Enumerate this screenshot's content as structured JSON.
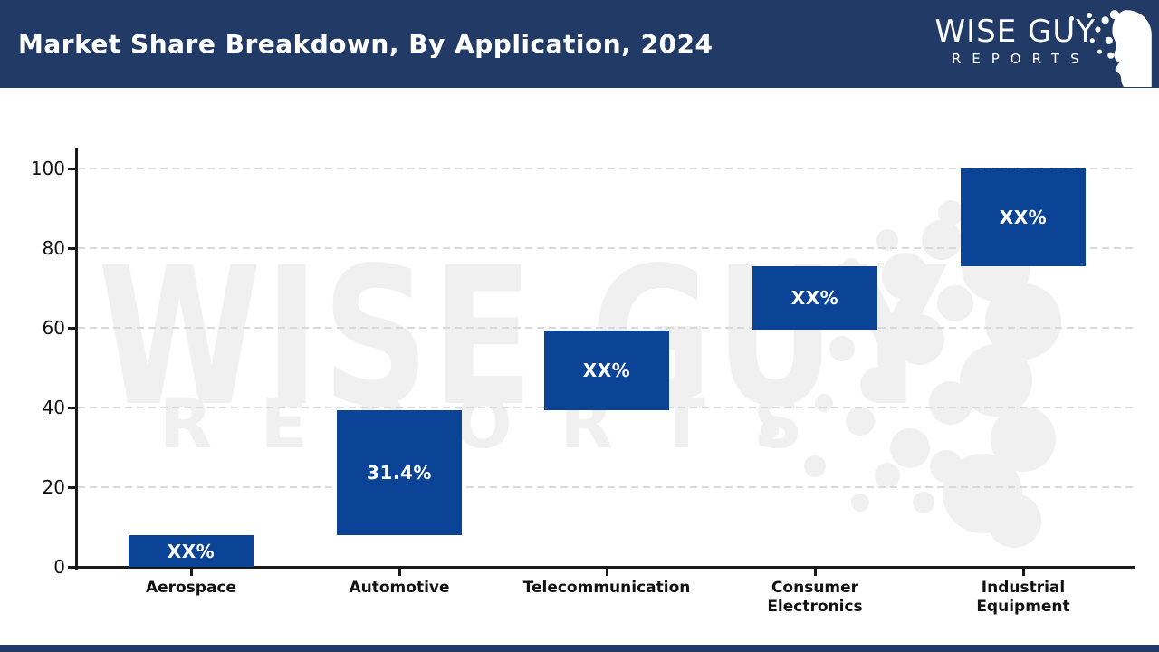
{
  "header": {
    "title": "Market Share Breakdown, By Application, 2024",
    "logo": {
      "line1": "WISE GUY",
      "line2": "REPORTS"
    }
  },
  "watermark": {
    "line1": "WISE GUY",
    "line2": "REPORTS"
  },
  "colors": {
    "header_bg": "#213a66",
    "footer_bg": "#213a66",
    "bar": "#0b4397",
    "grid": "#d9d9d9",
    "axis": "#1a1a1a",
    "bar_label": "#ffffff",
    "watermark": "#f0f0f1"
  },
  "chart_data": {
    "type": "bar",
    "subtype": "waterfall-stepped",
    "title": "Market Share Breakdown, By Application, 2024",
    "categories": [
      "Aerospace",
      "Automotive",
      "Telecommunication",
      "Consumer\nElectronics",
      "Industrial\nEquipment"
    ],
    "segments": [
      {
        "category": "Aerospace",
        "start": 0,
        "end": 7.9,
        "label": "XX%"
      },
      {
        "category": "Automotive",
        "start": 7.9,
        "end": 39.3,
        "label": "31.4%"
      },
      {
        "category": "Telecommunication",
        "start": 39.4,
        "end": 59.4,
        "label": "XX%"
      },
      {
        "category": "Consumer Electronics",
        "start": 59.6,
        "end": 75.4,
        "label": "XX%"
      },
      {
        "category": "Industrial Equipment",
        "start": 75.4,
        "end": 100,
        "label": "XX%"
      }
    ],
    "yticks": [
      0,
      20,
      40,
      60,
      80,
      100
    ],
    "ylim": [
      0,
      100
    ],
    "xlabel": "",
    "ylabel": "",
    "grid": "dashed-horizontal",
    "legend": "none"
  }
}
